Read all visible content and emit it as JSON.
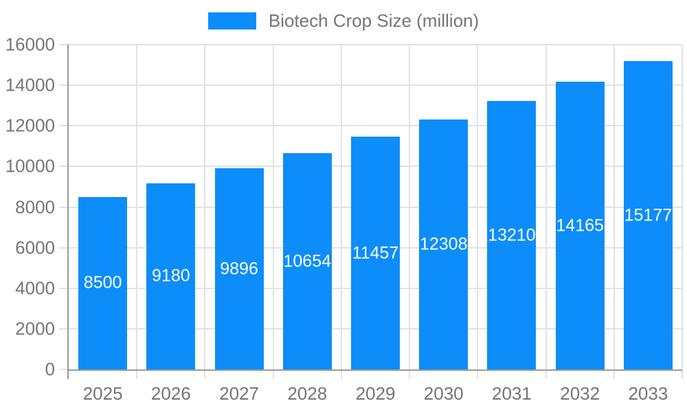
{
  "chart_data": {
    "type": "bar",
    "title": "",
    "legend": {
      "label": "Biotech Crop Size (million)",
      "position": "top-center"
    },
    "categories": [
      "2025",
      "2026",
      "2027",
      "2028",
      "2029",
      "2030",
      "2031",
      "2032",
      "2033"
    ],
    "series": [
      {
        "name": "Biotech Crop Size (million)",
        "values": [
          8500,
          9180,
          9896,
          10654,
          11457,
          12308,
          13210,
          14165,
          15177
        ]
      }
    ],
    "bar_value_labels": [
      "8500",
      "9180",
      "9896",
      "10654",
      "11457",
      "12308",
      "13210",
      "14165",
      "15177"
    ],
    "xlabel": "",
    "ylabel": "",
    "ylim": [
      0,
      16000
    ],
    "yticks": [
      0,
      2000,
      4000,
      6000,
      8000,
      10000,
      12000,
      14000,
      16000
    ],
    "grid": "both",
    "colors": {
      "bar": "#0d8df9",
      "grid": "#e2e2e2",
      "axis": "#9a9a9a",
      "tick_text": "#757575",
      "bar_label_text": "#ffffff",
      "background": "#ffffff"
    }
  }
}
